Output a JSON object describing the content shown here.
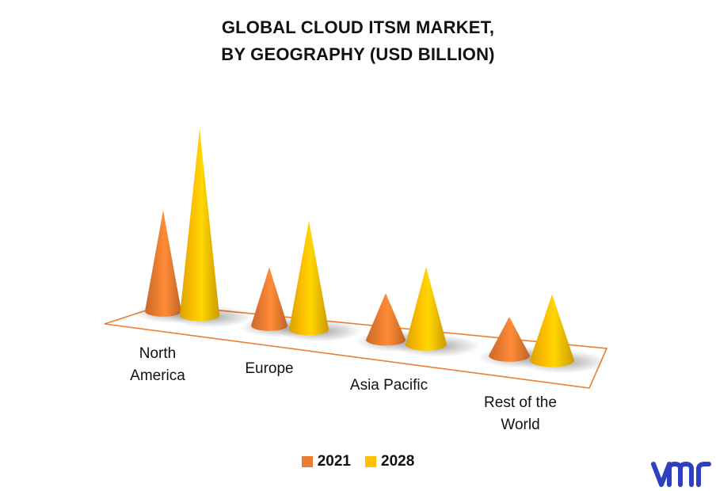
{
  "title_line1": "GLOBAL CLOUD ITSM MARKET,",
  "title_line2": "BY GEOGRAPHY (USD BILLION)",
  "colors": {
    "s2021": "#ed7d31",
    "s2028": "#ffc000",
    "floor": "#ed7d31",
    "logo": "#2e3fbf"
  },
  "chart_data": {
    "type": "bar",
    "style": "3d-cone",
    "categories": [
      "North America",
      "Europe",
      "Asia Pacific",
      "Rest of the World"
    ],
    "category_labels": [
      [
        "North",
        "America"
      ],
      [
        "Europe"
      ],
      [
        "Asia Pacific"
      ],
      [
        "Rest of the",
        "World"
      ]
    ],
    "series": [
      {
        "name": "2021",
        "values": [
          1.3,
          0.75,
          0.6,
          0.5
        ]
      },
      {
        "name": "2028",
        "values": [
          2.4,
          1.4,
          1.0,
          0.85
        ]
      }
    ],
    "ylim": [
      0,
      2.5
    ],
    "legend": "bottom",
    "grid": false
  },
  "logo_text": "vmr"
}
